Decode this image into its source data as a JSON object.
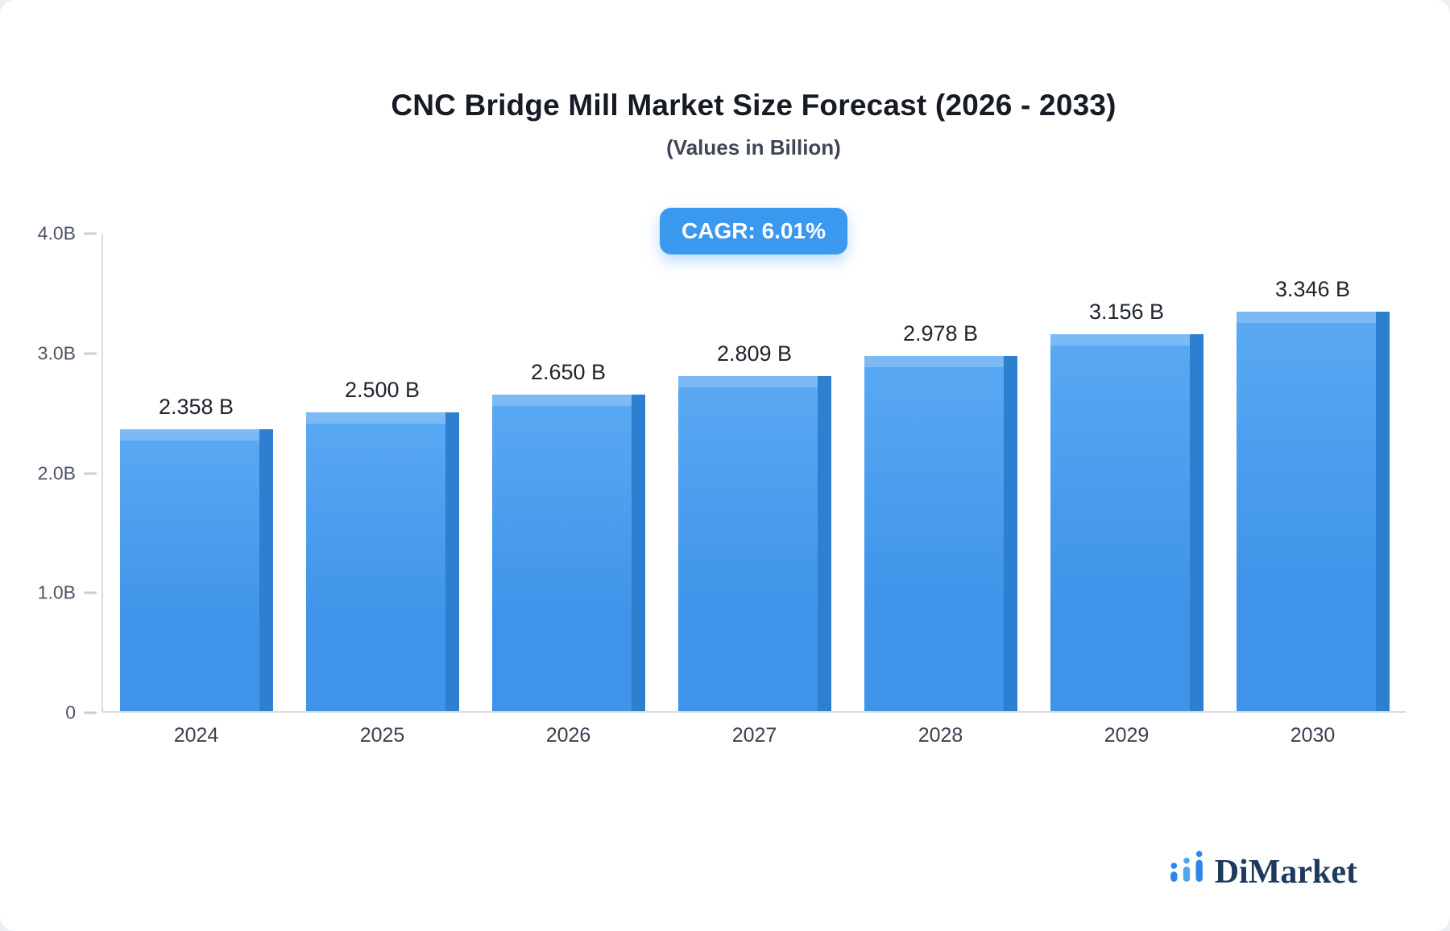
{
  "chart_data": {
    "type": "bar",
    "title": "CNC Bridge Mill Market Size Forecast (2026 - 2033)",
    "subtitle": "(Values in Billion)",
    "badge": "CAGR: 6.01%",
    "categories": [
      "2024",
      "2025",
      "2026",
      "2027",
      "2028",
      "2029",
      "2030"
    ],
    "values": [
      2.358,
      2.5,
      2.65,
      2.809,
      2.978,
      3.156,
      3.346
    ],
    "value_labels": [
      "2.358 B",
      "2.500 B",
      "2.650 B",
      "2.809 B",
      "2.978 B",
      "3.156 B",
      "3.346 B"
    ],
    "ylim": [
      0,
      4
    ],
    "y_ticks": [
      {
        "label": "0",
        "value": 0
      },
      {
        "label": "1.0B",
        "value": 1
      },
      {
        "label": "2.0B",
        "value": 2
      },
      {
        "label": "3.0B",
        "value": 3
      },
      {
        "label": "4.0B",
        "value": 4
      }
    ],
    "grid": false,
    "legend": false,
    "colors": {
      "face_top": "#5aa9f3",
      "face_bottom": "#3f94e9",
      "side": "#2d7fd0",
      "top_band": "#7cbaf6",
      "badge_bg": "#3b98ef",
      "title": "#161b24"
    }
  },
  "logo": {
    "text": "DiMarket",
    "icon": "bar-chart-icon",
    "text_color": "#1e3a5f",
    "icon_color": "#2e86e8"
  }
}
